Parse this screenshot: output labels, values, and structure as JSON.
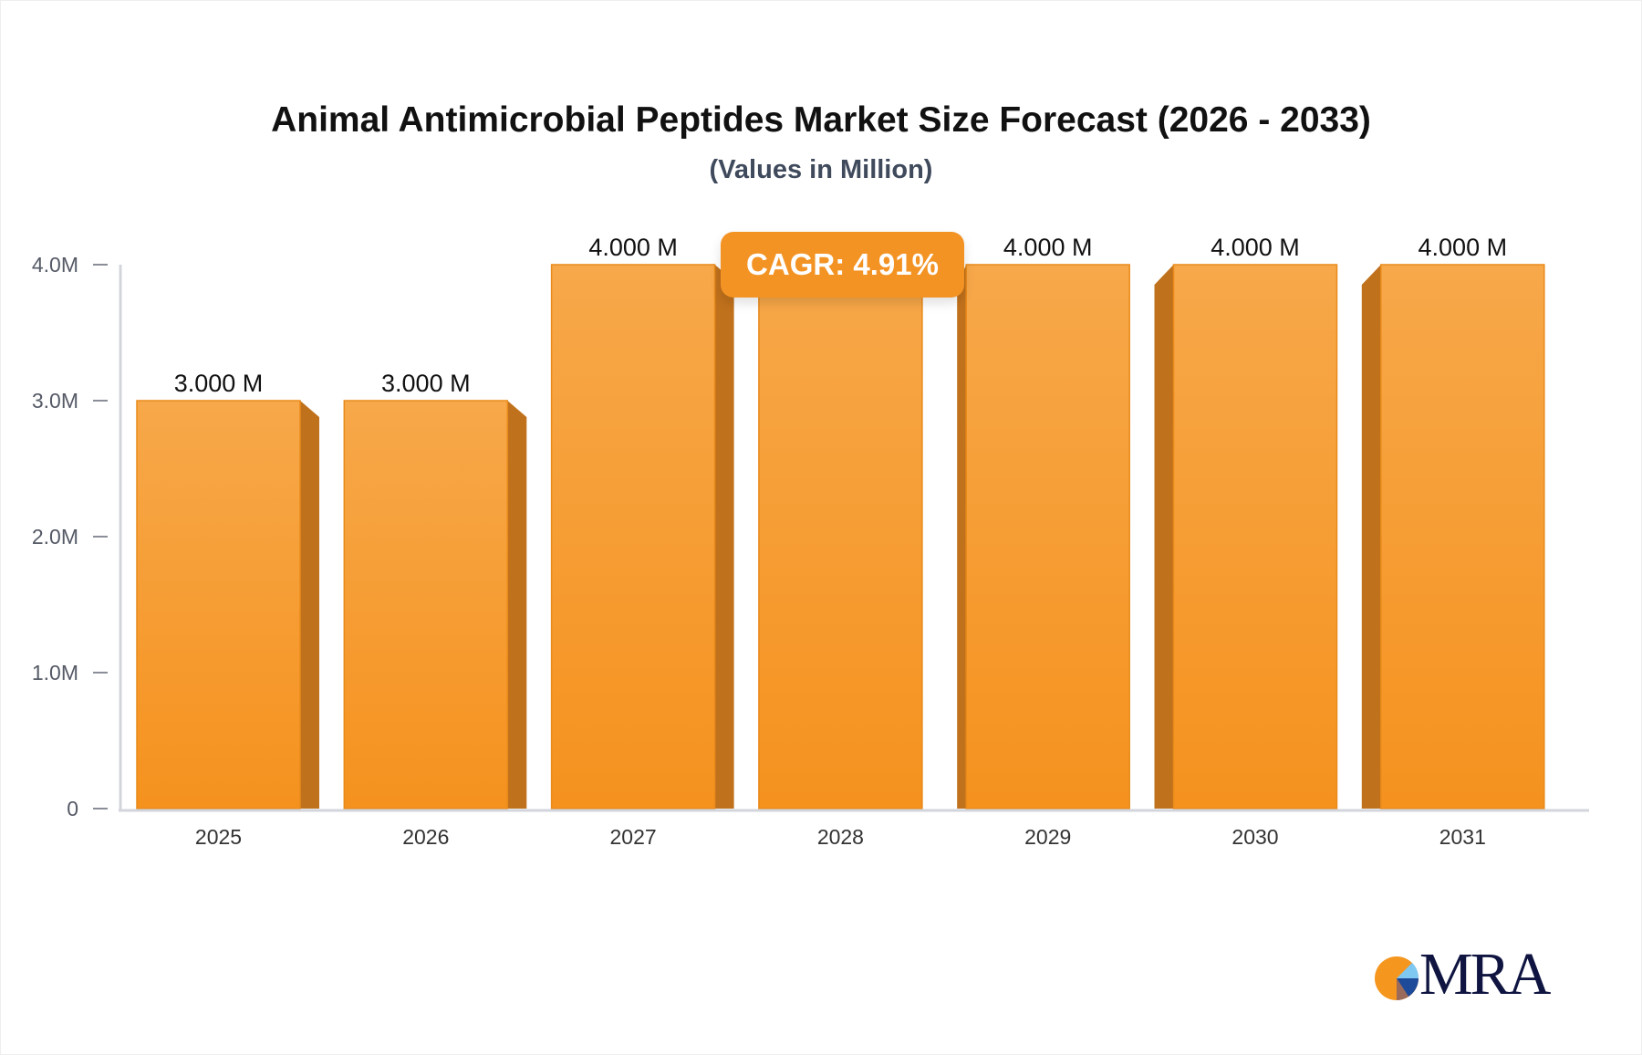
{
  "chart_data": {
    "type": "bar",
    "title": "Animal Antimicrobial Peptides Market Size Forecast (2026 - 2033)",
    "subtitle": "(Values in Million)",
    "categories": [
      "2025",
      "2026",
      "2027",
      "2028",
      "2029",
      "2030",
      "2031"
    ],
    "values": [
      3,
      3,
      4,
      4,
      4,
      4,
      4
    ],
    "value_labels": [
      "3.000 M",
      "3.000 M",
      "4.000 M",
      "",
      "4.000 M",
      "4.000 M",
      "4.000 M"
    ],
    "unit": "M",
    "ylim": [
      0,
      4
    ],
    "y_ticks": [
      "0",
      "1.0M",
      "2.0M",
      "3.0M",
      "4.0M"
    ],
    "grid": false,
    "bar_color": "#f5962a",
    "annotation": "CAGR: 4.91%"
  },
  "logo": {
    "text": "MRA"
  }
}
